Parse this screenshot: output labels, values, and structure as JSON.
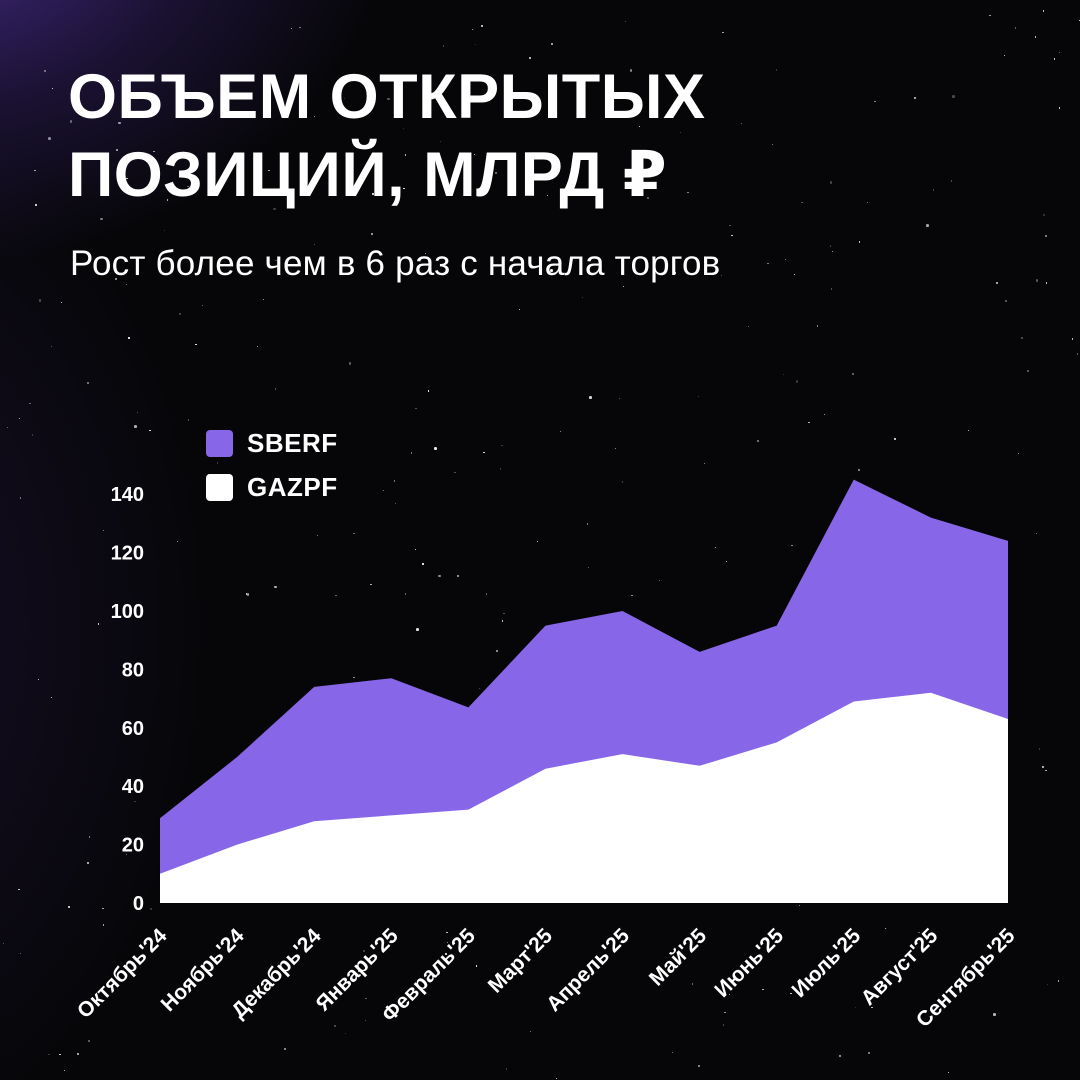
{
  "header": {
    "title_line1": "ОБЪЕМ ОТКРЫТЫХ",
    "title_line2": "ПОЗИЦИЙ, МЛРД ₽",
    "subtitle": "Рост более чем в 6 раз с начала торгов"
  },
  "chart_data": {
    "type": "area",
    "title": "Объем открытых позиций, млрд ₽",
    "categories": [
      "Октябрь'24",
      "Ноябрь'24",
      "Декабрь'24",
      "Январь'25",
      "Февраль'25",
      "Март'25",
      "Апрель'25",
      "Май'25",
      "Июнь'25",
      "Июль'25",
      "Август'25",
      "Сентябрь'25"
    ],
    "series": [
      {
        "name": "SBERF",
        "color": "#8766e8",
        "values": [
          29,
          50,
          74,
          77,
          67,
          95,
          100,
          86,
          95,
          145,
          132,
          124
        ]
      },
      {
        "name": "GAZPF",
        "color": "#ffffff",
        "values": [
          10,
          20,
          28,
          30,
          32,
          46,
          51,
          47,
          55,
          69,
          72,
          63
        ]
      }
    ],
    "xlabel": "",
    "ylabel": "",
    "ylim": [
      0,
      150
    ],
    "yticks": [
      0,
      20,
      40,
      60,
      80,
      100,
      120,
      140
    ],
    "grid": false,
    "legend_position": "top-left",
    "note": "areas overlap: SBERF drawn behind, GAZPF in front"
  }
}
